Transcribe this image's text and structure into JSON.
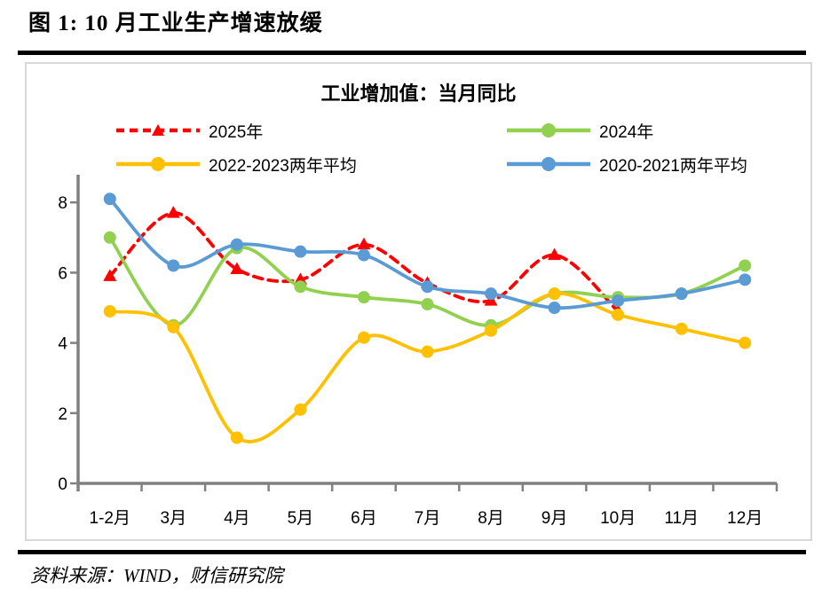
{
  "page": {
    "title": "图 1:  10 月工业生产增速放缓",
    "source": "资料来源：WIND，财信研究院"
  },
  "chart_data": {
    "type": "line",
    "title": "工业增加值：当月同比",
    "categories": [
      "1-2月",
      "3月",
      "4月",
      "5月",
      "6月",
      "7月",
      "8月",
      "9月",
      "10月",
      "11月",
      "12月"
    ],
    "series": [
      {
        "name": "2025年",
        "color": "#FF0000",
        "line": "dashed",
        "marker": "triangle",
        "values": [
          5.9,
          7.7,
          6.1,
          5.8,
          6.8,
          5.7,
          5.2,
          6.5,
          4.9,
          null,
          null
        ]
      },
      {
        "name": "2024年",
        "color": "#92D050",
        "line": "solid",
        "marker": "circle",
        "values": [
          7.0,
          4.5,
          6.7,
          5.6,
          5.3,
          5.1,
          4.5,
          5.4,
          5.3,
          5.4,
          6.2
        ]
      },
      {
        "name": "2022-2023两年平均",
        "color": "#FFC000",
        "line": "solid",
        "marker": "circle",
        "values": [
          4.9,
          4.45,
          1.3,
          2.1,
          4.15,
          3.75,
          4.35,
          5.4,
          4.8,
          4.4,
          4.0
        ]
      },
      {
        "name": "2020-2021两年平均",
        "color": "#5B9BD5",
        "line": "solid",
        "marker": "circle",
        "values": [
          8.1,
          6.2,
          6.8,
          6.6,
          6.5,
          5.6,
          5.4,
          5.0,
          5.2,
          5.4,
          5.8
        ]
      }
    ],
    "yticks": [
      0,
      2,
      4,
      6,
      8
    ],
    "ylim": [
      0,
      8.8
    ],
    "xlabel": "",
    "ylabel": "",
    "grid": false,
    "legend_position": "top",
    "axis_color": "#808080",
    "smooth_lines": true
  }
}
